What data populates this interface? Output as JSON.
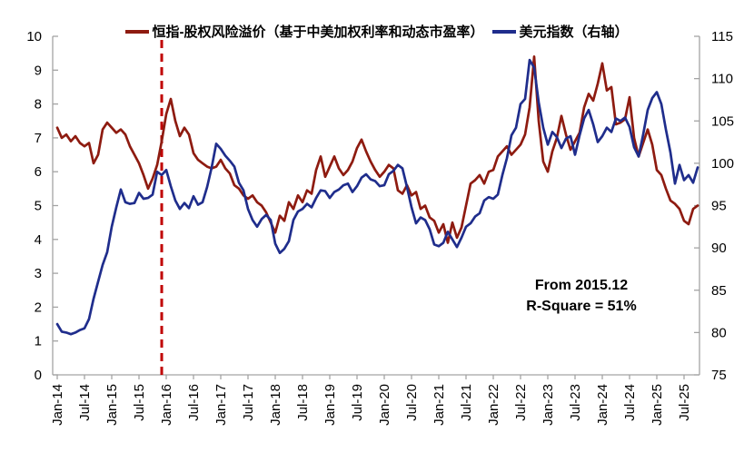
{
  "legend": {
    "items": [
      {
        "label": "恒指-股权风险溢价（基于中美加权利率和动态市盈率）",
        "color": "#8e1b10"
      },
      {
        "label": "美元指数（右轴）",
        "color": "#1f2d8c"
      }
    ]
  },
  "annotation": {
    "line1": "From 2015.12",
    "line2": "R-Square = 51%"
  },
  "chart_data": {
    "type": "line",
    "title": "",
    "xlabel": "",
    "ylabel_left": "",
    "ylabel_right": "",
    "grid": false,
    "legend_position": "top-center",
    "x_start_month": "Jan-14",
    "x_end_month": "Oct-25",
    "x_tick_interval_months": 6,
    "x_tick_labels": [
      "Jan-14",
      "Jul-14",
      "Jan-15",
      "Jul-15",
      "Jan-16",
      "Jul-16",
      "Jan-17",
      "Jul-17",
      "Jan-18",
      "Jul-18",
      "Jan-19",
      "Jul-19",
      "Jan-20",
      "Jul-20",
      "Jan-21",
      "Jul-21",
      "Jan-22",
      "Jul-22",
      "Jan-23",
      "Jul-23",
      "Jan-24",
      "Jul-24",
      "Jan-25",
      "Jul-25"
    ],
    "left_axis": {
      "min": 0,
      "max": 10,
      "ticks": [
        0,
        1,
        2,
        3,
        4,
        5,
        6,
        7,
        8,
        9,
        10
      ]
    },
    "right_axis": {
      "min": 75,
      "max": 115,
      "ticks": [
        75,
        80,
        85,
        90,
        95,
        100,
        105,
        110,
        115
      ]
    },
    "marker": {
      "type": "dashed-vertical-line",
      "month_index": 23,
      "color": "#c00000"
    },
    "axis_color": "#a3a3a3",
    "series": [
      {
        "name": "恒指-股权风险溢价（基于中美加权利率和动态市盈率）",
        "axis": "left",
        "color": "#8e1b10",
        "values": [
          7.3,
          7.0,
          7.1,
          6.9,
          7.05,
          6.85,
          6.75,
          6.85,
          6.25,
          6.5,
          7.25,
          7.45,
          7.3,
          7.15,
          7.25,
          7.1,
          6.75,
          6.5,
          6.25,
          5.9,
          5.5,
          5.8,
          6.2,
          6.9,
          7.7,
          8.15,
          7.5,
          7.05,
          7.3,
          7.1,
          6.55,
          6.35,
          6.25,
          6.15,
          6.1,
          6.15,
          6.35,
          6.1,
          5.95,
          5.6,
          5.5,
          5.3,
          5.2,
          5.3,
          5.1,
          5.0,
          4.8,
          4.5,
          4.2,
          4.7,
          4.55,
          5.1,
          4.9,
          5.3,
          5.1,
          5.45,
          5.35,
          6.05,
          6.45,
          5.85,
          6.15,
          6.45,
          6.1,
          5.9,
          6.05,
          6.3,
          6.7,
          6.95,
          6.6,
          6.3,
          6.05,
          5.85,
          6.0,
          6.2,
          6.1,
          5.45,
          5.35,
          5.6,
          5.3,
          5.4,
          4.9,
          5.0,
          4.65,
          4.55,
          4.2,
          4.45,
          3.9,
          4.5,
          4.05,
          4.35,
          5.0,
          5.65,
          5.75,
          5.9,
          5.65,
          6.0,
          6.05,
          6.45,
          6.6,
          6.75,
          6.5,
          6.65,
          6.8,
          7.1,
          7.9,
          9.4,
          7.5,
          6.3,
          6.0,
          6.6,
          7.0,
          7.65,
          7.1,
          6.65,
          6.9,
          7.15,
          7.9,
          8.3,
          8.1,
          8.6,
          9.2,
          8.4,
          8.5,
          7.4,
          7.45,
          7.55,
          8.2,
          7.0,
          6.45,
          6.85,
          7.25,
          6.8,
          6.05,
          5.9,
          5.5,
          5.15,
          5.05,
          4.9,
          4.55,
          4.45,
          4.9,
          5.0
        ]
      },
      {
        "name": "美元指数（右轴）",
        "axis": "right",
        "color": "#1f2d8c",
        "values": [
          81.0,
          80.1,
          80.0,
          79.8,
          80.0,
          80.3,
          80.5,
          81.6,
          84.0,
          86.0,
          88.0,
          89.5,
          92.5,
          94.8,
          96.9,
          95.4,
          95.2,
          95.3,
          96.5,
          95.8,
          95.9,
          96.3,
          99.0,
          98.6,
          99.2,
          97.3,
          95.6,
          94.6,
          95.3,
          94.7,
          96.1,
          95.1,
          95.4,
          97.2,
          99.5,
          102.3,
          101.7,
          100.9,
          100.3,
          99.6,
          97.7,
          96.8,
          94.6,
          93.3,
          92.5,
          93.4,
          93.9,
          93.3,
          90.5,
          89.4,
          89.9,
          90.8,
          93.3,
          94.3,
          94.6,
          95.2,
          94.8,
          95.9,
          96.8,
          96.7,
          95.9,
          96.6,
          96.9,
          97.4,
          97.6,
          96.6,
          97.3,
          98.3,
          98.7,
          98.1,
          97.9,
          97.3,
          97.4,
          98.7,
          99.1,
          99.8,
          99.4,
          97.2,
          94.8,
          92.9,
          93.6,
          93.3,
          92.2,
          90.4,
          90.2,
          90.6,
          91.9,
          91.0,
          90.1,
          91.2,
          92.5,
          92.9,
          93.7,
          94.1,
          95.6,
          96.0,
          95.8,
          96.3,
          98.6,
          100.6,
          103.3,
          104.2,
          107.0,
          107.6,
          112.2,
          111.3,
          107.2,
          104.2,
          102.2,
          103.7,
          103.1,
          101.8,
          102.9,
          103.2,
          101.0,
          103.3,
          105.3,
          106.3,
          104.6,
          102.5,
          103.2,
          104.2,
          103.7,
          105.3,
          105.0,
          105.4,
          104.3,
          101.9,
          100.8,
          103.4,
          106.3,
          107.7,
          108.4,
          107.0,
          104.0,
          101.3,
          97.6,
          99.8,
          98.0,
          98.6,
          97.7,
          99.5
        ]
      }
    ]
  }
}
